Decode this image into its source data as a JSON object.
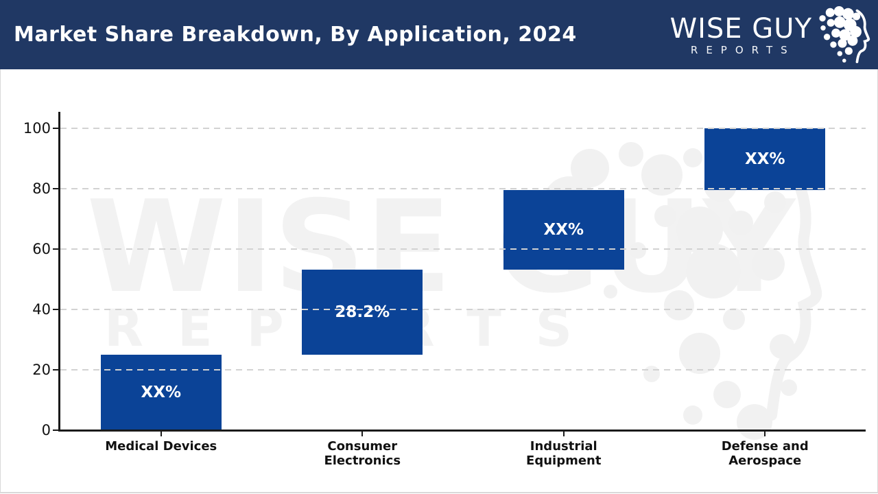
{
  "header": {
    "title": "Market Share Breakdown, By Application, 2024",
    "logo": {
      "primary": "WISE GUY",
      "secondary": "REPORTS"
    }
  },
  "watermark": {
    "primary": "WISE GUY",
    "secondary": "REPORTS"
  },
  "colors": {
    "header_bg": "#203864",
    "title_text": "#ffffff",
    "bar": "#0b4397",
    "bar_label": "#ffffff",
    "gridline": "#d2d2d2",
    "axis": "#1a1a1a",
    "tick_text": "#111111",
    "watermark": "#f2f2f2",
    "frame_border": "#d9d9d9"
  },
  "chart_data": {
    "type": "bar",
    "subtype": "floating-waterfall",
    "title": "Market Share Breakdown, By Application, 2024",
    "categories": [
      "Medical Devices",
      "Consumer Electronics",
      "Industrial Equipment",
      "Defense and Aerospace"
    ],
    "category_label_lines": [
      [
        "Medical Devices"
      ],
      [
        "Consumer",
        "Electronics"
      ],
      [
        "Industrial",
        "Equipment"
      ],
      [
        "Defense and",
        "Aerospace"
      ]
    ],
    "bars": [
      {
        "category": "Medical Devices",
        "start": 0,
        "end": 25,
        "label": "XX%"
      },
      {
        "category": "Consumer Electronics",
        "start": 25,
        "end": 53.2,
        "label": "28.2%",
        "value": 28.2
      },
      {
        "category": "Industrial Equipment",
        "start": 53.2,
        "end": 79.5,
        "label": "XX%"
      },
      {
        "category": "Defense and Aerospace",
        "start": 79.5,
        "end": 100,
        "label": "XX%"
      }
    ],
    "xlabel": "",
    "ylabel": "",
    "ylim": [
      0,
      100
    ],
    "yticks": [
      0,
      20,
      40,
      60,
      80,
      100
    ],
    "grid": "horizontal-dashed",
    "legend": null
  }
}
